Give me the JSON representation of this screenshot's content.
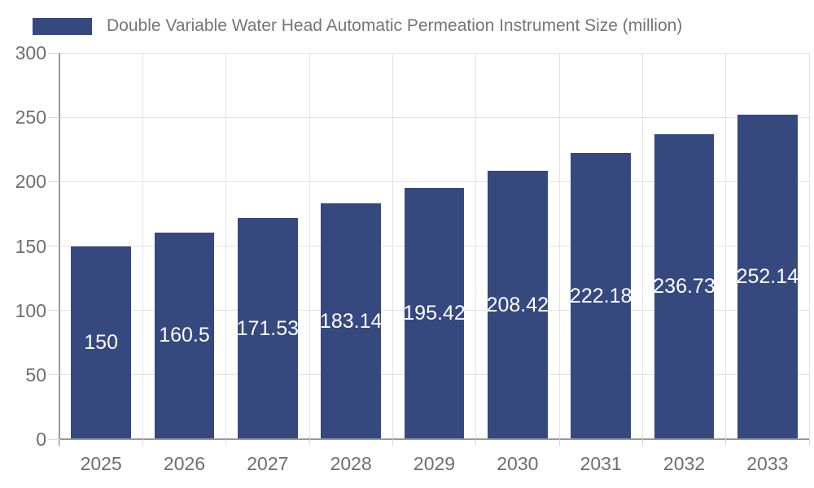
{
  "legend": {
    "label": "Double Variable Water Head Automatic Permeation Instrument Size (million)"
  },
  "chart_data": {
    "type": "bar",
    "title": "Double Variable Water Head Automatic Permeation Instrument Size (million)",
    "categories": [
      "2025",
      "2026",
      "2027",
      "2028",
      "2029",
      "2030",
      "2031",
      "2032",
      "2033"
    ],
    "values": [
      150,
      160.5,
      171.53,
      183.14,
      195.42,
      208.42,
      222.18,
      236.73,
      252.14
    ],
    "value_labels": [
      "150",
      "160.5",
      "171.53",
      "183.14",
      "195.42",
      "208.42",
      "222.18",
      "236.73",
      "252.14"
    ],
    "xlabel": "",
    "ylabel": "",
    "ylim": [
      0,
      300
    ],
    "yticks": [
      0,
      50,
      100,
      150,
      200,
      250,
      300
    ],
    "grid": true,
    "legend_position": "top-left",
    "colors": {
      "bar": "#36497E",
      "grid": "#E3E3E3",
      "axis_line": "#999999",
      "tick": "#D9D9D9",
      "tick_text": "#6E6E6E",
      "legend_text": "#757575",
      "value_text": "#FFFFFF"
    }
  }
}
